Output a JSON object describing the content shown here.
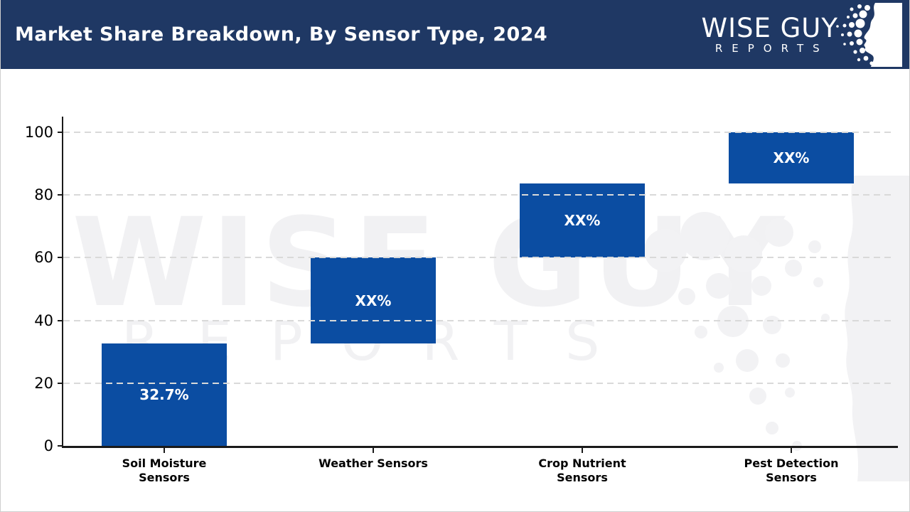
{
  "header": {
    "title": "Market Share Breakdown, By Sensor Type, 2024",
    "logo": {
      "line1": "WISE GUY",
      "line2": "REPORTS"
    }
  },
  "watermark": {
    "line1": "WISE GUY",
    "line2": "REPORTS"
  },
  "colors": {
    "header_bg": "#1f3864",
    "bar_fill": "#0b4da2",
    "bar_label": "#ffffff",
    "gridline": "#d9d9d9",
    "axis": "#1a1a1a",
    "watermark": "#f1f1f3",
    "page_bg": "#ffffff"
  },
  "chart_data": {
    "type": "bar",
    "subtype": "waterfall",
    "title": "Market Share Breakdown, By Sensor Type, 2024",
    "categories": [
      [
        "Soil Moisture",
        "Sensors"
      ],
      [
        "Weather Sensors"
      ],
      [
        "Crop Nutrient",
        "Sensors"
      ],
      [
        "Pest Detection",
        "Sensors"
      ]
    ],
    "segments": [
      {
        "start": 0,
        "end": 32.7,
        "label": "32.7%"
      },
      {
        "start": 32.7,
        "end": 60,
        "label": "XX%"
      },
      {
        "start": 60,
        "end": 83.7,
        "label": "XX%"
      },
      {
        "start": 83.7,
        "end": 100,
        "label": "XX%"
      }
    ],
    "yticks": [
      0,
      20,
      40,
      60,
      80,
      100
    ],
    "ylim": [
      0,
      100
    ],
    "xlabel": "",
    "ylabel": "",
    "grid": "dashed-horizontal",
    "legend": "none"
  }
}
